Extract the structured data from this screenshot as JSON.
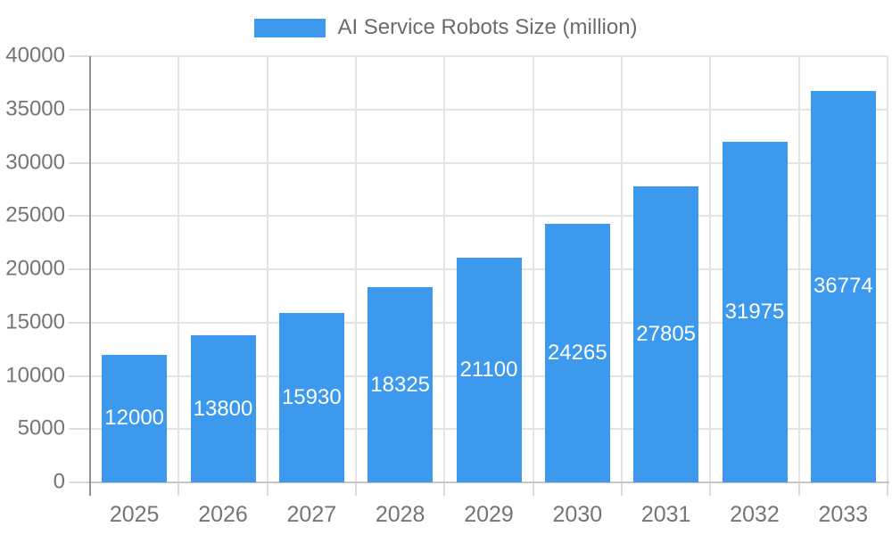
{
  "legend": {
    "label": "AI Service Robots Size (million)"
  },
  "colors": {
    "bar": "#3D99EE",
    "value_label": "#FFFFFF",
    "axis_text": "#757575",
    "legend_text": "#6B6B6B",
    "grid_line": "#E4E4E4",
    "tick_line": "#DCDCDC",
    "y_axis_line": "#8F8F8F",
    "x_axis_line": "#C6C6C6",
    "background": "#FFFFFF"
  },
  "chart_data": {
    "type": "bar",
    "title": "",
    "categories": [
      "2025",
      "2026",
      "2027",
      "2028",
      "2029",
      "2030",
      "2031",
      "2032",
      "2033"
    ],
    "series": [
      {
        "name": "AI Service Robots Size (million)",
        "values": [
          12000,
          13800,
          15930,
          18325,
          21100,
          24265,
          27805,
          31975,
          36774
        ]
      }
    ],
    "value_labels_shown": [
      "12000",
      "13800",
      "15930",
      "18325",
      "21100",
      "24265",
      "27805",
      "31975",
      "36774"
    ],
    "xlabel": "",
    "ylabel": "",
    "ylim": [
      0,
      40000
    ],
    "yticks": [
      0,
      5000,
      10000,
      15000,
      20000,
      25000,
      30000,
      35000,
      40000
    ],
    "grid": true,
    "legend_position": "top-center",
    "value_label_position": "inside-center"
  }
}
